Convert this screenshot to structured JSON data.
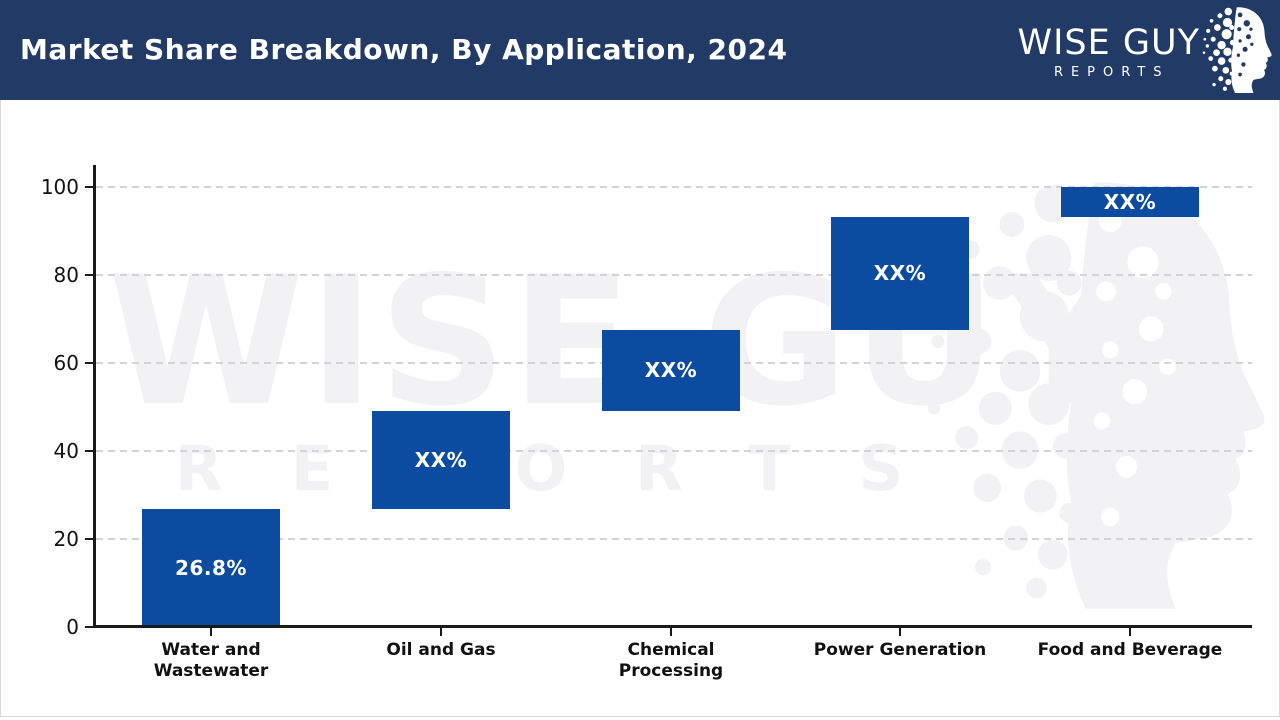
{
  "header": {
    "title": "Market Share Breakdown, By Application, 2024",
    "logo": {
      "wordmark": "WISE GUY",
      "subtext": "REPORTS"
    }
  },
  "watermark": {
    "wordmark": "WISE GUY",
    "subtext": "REPORTS"
  },
  "colors": {
    "header_bg": "#223A66",
    "bar": "#0B4BA0",
    "grid": "#D4D4D4",
    "axis": "#1A1A1A",
    "title_text": "#FFFFFF",
    "bar_label_text": "#FFFFFF",
    "watermark": "#F2F2F4"
  },
  "chart_data": {
    "type": "bar",
    "subtype": "waterfall",
    "title": "Market Share Breakdown, By Application, 2024",
    "categories": [
      "Water and\nWastewater",
      "Oil and Gas",
      "Chemical\nProcessing",
      "Power Generation",
      "Food and Beverage"
    ],
    "bars": [
      {
        "category": "Water and Wastewater",
        "start": 0,
        "end": 26.8,
        "label": "26.8%"
      },
      {
        "category": "Oil and Gas",
        "start": 26.8,
        "end": 49.1,
        "label": "XX%"
      },
      {
        "category": "Chemical Processing",
        "start": 49.1,
        "end": 67.5,
        "label": "XX%"
      },
      {
        "category": "Power Generation",
        "start": 67.5,
        "end": 93.2,
        "label": "XX%"
      },
      {
        "category": "Food and Beverage",
        "start": 93.2,
        "end": 100,
        "label": "XX%"
      }
    ],
    "xlabel": "",
    "ylabel": "",
    "yticks": [
      0,
      20,
      40,
      60,
      80,
      100
    ],
    "ylim": [
      0,
      105
    ],
    "grid": "horizontal-dashed",
    "legend": null
  }
}
